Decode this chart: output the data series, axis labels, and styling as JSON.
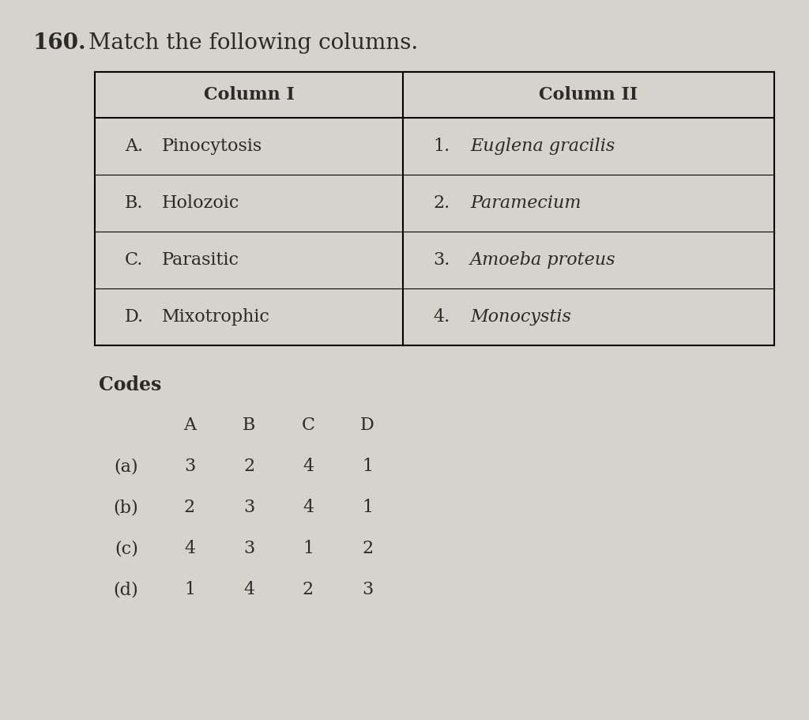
{
  "question_number": "160.",
  "question_text": "Match the following columns.",
  "background_color": "#d6d2cc",
  "col1_header": "Column I",
  "col2_header": "Column II",
  "col1_items": [
    [
      "A.",
      "Pinocytosis"
    ],
    [
      "B.",
      "Holozoic"
    ],
    [
      "C.",
      "Parasitic"
    ],
    [
      "D.",
      "Mixotrophic"
    ]
  ],
  "col2_items": [
    [
      "1.",
      "Euglena gracilis"
    ],
    [
      "2.",
      "Paramecium"
    ],
    [
      "3.",
      "Amoeba proteus"
    ],
    [
      "4.",
      "Monocystis"
    ]
  ],
  "codes_label": "Codes",
  "codes_header": [
    "A",
    "B",
    "C",
    "D"
  ],
  "codes_rows": [
    [
      "(a)",
      "3",
      "2",
      "4",
      "1"
    ],
    [
      "(b)",
      "2",
      "3",
      "4",
      "1"
    ],
    [
      "(c)",
      "4",
      "3",
      "1",
      "2"
    ],
    [
      "(d)",
      "1",
      "4",
      "2",
      "3"
    ]
  ],
  "title_fontsize": 20,
  "header_fontsize": 16,
  "body_fontsize": 16,
  "codes_fontsize": 16,
  "text_color": "#2a2a2a"
}
